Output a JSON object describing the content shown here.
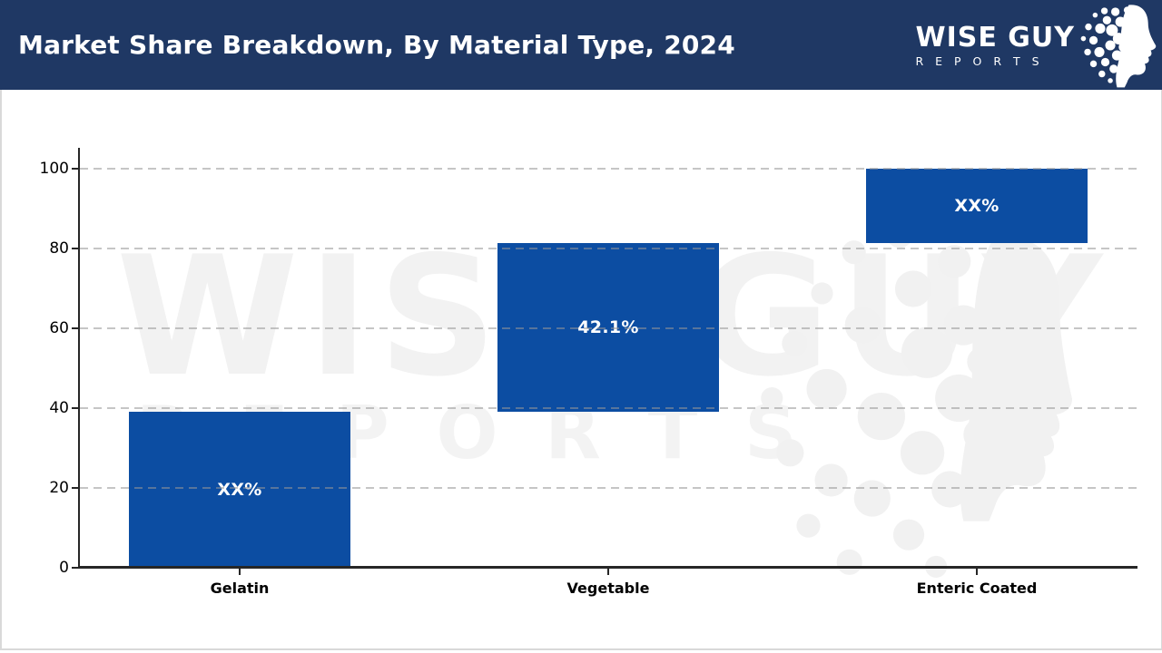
{
  "header": {
    "title": "Market Share Breakdown, By Material Type, 2024",
    "bg_color": "#1f3864",
    "logo": {
      "line1": "WISE GUY",
      "line2": "R E P O R T S"
    }
  },
  "watermark": {
    "line1": "WISE GUY",
    "line2": "R E P O R T S"
  },
  "chart_data": {
    "type": "bar",
    "variant": "floating-waterfall",
    "title": "Market Share Breakdown, By Material Type, 2024",
    "categories": [
      "Gelatin",
      "Vegetable",
      "Enteric Coated"
    ],
    "bars": [
      {
        "category": "Gelatin",
        "start": 0,
        "end": 39.2,
        "label": "XX%"
      },
      {
        "category": "Vegetable",
        "start": 39.2,
        "end": 81.3,
        "label": "42.1%"
      },
      {
        "category": "Enteric Coated",
        "start": 81.3,
        "end": 100,
        "label": "XX%"
      }
    ],
    "yticks": [
      0,
      20,
      40,
      60,
      80,
      100
    ],
    "ylim": [
      0,
      105
    ],
    "xlabel": "",
    "ylabel": "",
    "grid": "horizontal dashed",
    "legend": "none",
    "bar_color": "#0c4da2",
    "bar_label_color": "#ffffff",
    "axis_color": "#262626"
  }
}
